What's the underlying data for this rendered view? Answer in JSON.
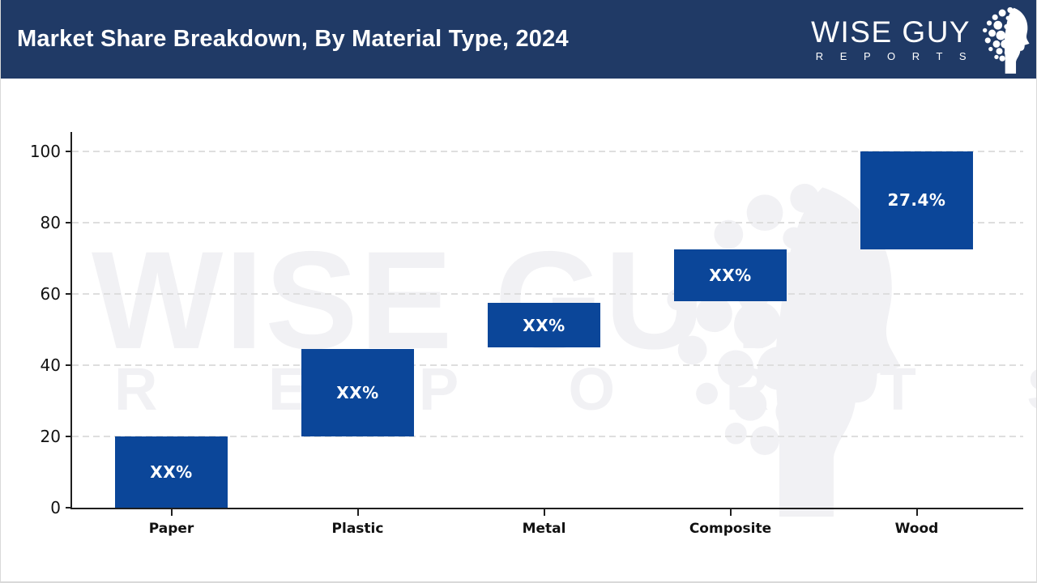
{
  "header": {
    "title": "Market Share Breakdown, By Material Type, 2024",
    "bg_color": "#203a66",
    "logo": {
      "line1": "WISE GUY",
      "line2": "R E P O R T S"
    }
  },
  "watermark": {
    "line1": "WISE GUY",
    "line2": "R E P O R T S"
  },
  "chart_data": {
    "type": "bar",
    "subtype": "floating-waterfall",
    "title": "Market Share Breakdown, By Material Type, 2024",
    "categories": [
      "Paper",
      "Plastic",
      "Metal",
      "Composite",
      "Wood"
    ],
    "segments": [
      {
        "category": "Paper",
        "start": 0,
        "end": 20,
        "label": "XX%"
      },
      {
        "category": "Plastic",
        "start": 20,
        "end": 44.5,
        "label": "XX%"
      },
      {
        "category": "Metal",
        "start": 45,
        "end": 57.5,
        "label": "XX%"
      },
      {
        "category": "Composite",
        "start": 58,
        "end": 72.5,
        "label": "XX%"
      },
      {
        "category": "Wood",
        "start": 72.6,
        "end": 100,
        "label": "27.4%"
      }
    ],
    "yticks": [
      0,
      20,
      40,
      60,
      80,
      100
    ],
    "ylim": [
      0,
      105
    ],
    "xlabel": "",
    "ylabel": "",
    "legend": "none",
    "grid": "horizontal-dashed",
    "bar_color": "#0b4699",
    "bar_label_color": "#ffffff"
  }
}
